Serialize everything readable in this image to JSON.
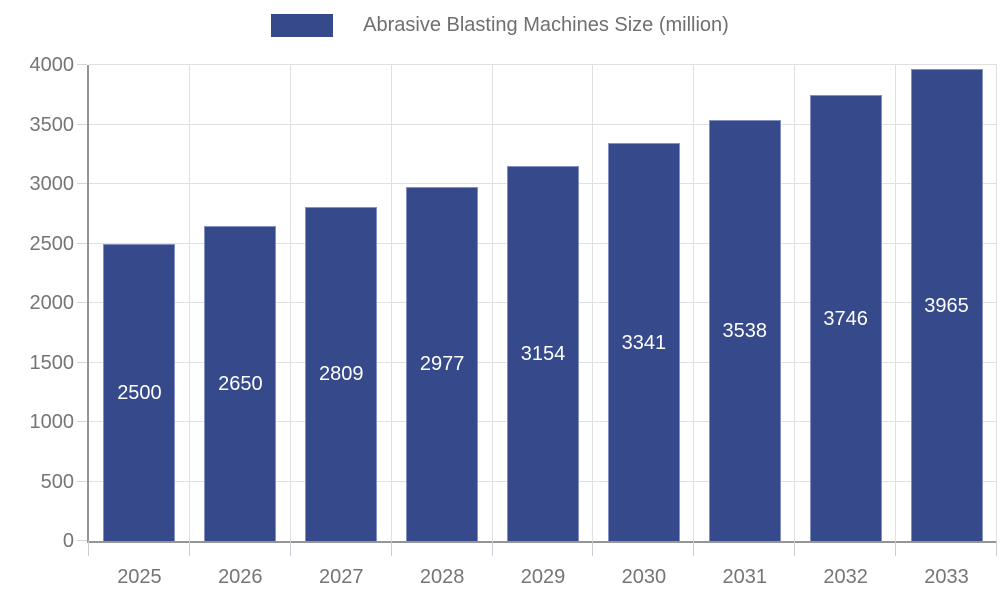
{
  "chart_data": {
    "type": "bar",
    "title": "Abrasive Blasting Machines Size (million)",
    "legend_entries": [
      "Abrasive Blasting Machines Size (million)"
    ],
    "categories": [
      "2025",
      "2026",
      "2027",
      "2028",
      "2029",
      "2030",
      "2031",
      "2032",
      "2033"
    ],
    "values": [
      2500,
      2650,
      2809,
      2977,
      3154,
      3341,
      3538,
      3746,
      3965
    ],
    "xlabel": "",
    "ylabel": "",
    "ylim": [
      0,
      4000
    ],
    "yticks": [
      0,
      500,
      1000,
      1500,
      2000,
      2500,
      3000,
      3500,
      4000
    ],
    "grid": true,
    "bar_value_labels": true,
    "legend_position": "top-center"
  },
  "colors": {
    "bar": "#36498a",
    "bar_border": "#8490c2",
    "axis_line": "#959595",
    "gridline": "#e0e0e0",
    "tick": "#c9cdd8",
    "axis_text": "#757575",
    "bar_label_text": "#ffffff",
    "legend_text": "#6f6f6f"
  }
}
